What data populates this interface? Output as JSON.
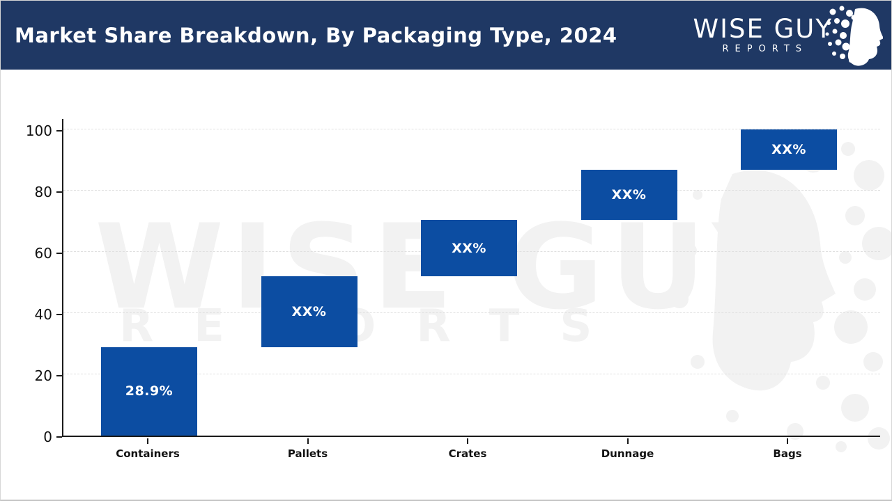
{
  "header": {
    "title": "Market Share Breakdown, By Packaging Type, 2024",
    "logo": {
      "line1": "WISE GUY",
      "line2": "REPORTS"
    }
  },
  "watermark": {
    "line1": "WISE GUY",
    "line2": "REPORTS"
  },
  "chart_data": {
    "type": "bar",
    "subtype": "waterfall-floating-bars",
    "title": "Market Share Breakdown, By Packaging Type, 2024",
    "categories": [
      "Containers",
      "Pallets",
      "Crates",
      "Dunnage",
      "Bags"
    ],
    "segments": [
      {
        "category": "Containers",
        "start": 0,
        "end": 28.9,
        "label": "28.9%"
      },
      {
        "category": "Pallets",
        "start": 28.9,
        "end": 52.0,
        "label": "XX%"
      },
      {
        "category": "Crates",
        "start": 52.0,
        "end": 70.4,
        "label": "XX%"
      },
      {
        "category": "Dunnage",
        "start": 70.4,
        "end": 86.9,
        "label": "XX%"
      },
      {
        "category": "Bags",
        "start": 86.9,
        "end": 100,
        "label": "XX%"
      }
    ],
    "ylabel": "",
    "xlabel": "",
    "ylim": [
      0,
      100
    ],
    "yticks": [
      0,
      20,
      40,
      60,
      80,
      100
    ],
    "grid": "horizontal-dashed",
    "legend": "none",
    "units": "percent"
  },
  "colors": {
    "header_bg": "#1f3864",
    "bar_fill": "#0c4da2",
    "bar_label": "#ffffff",
    "axis": "#1a1a1a",
    "gridline": "#e0e0e0",
    "watermark": "#f2f2f2",
    "page_border": "#d6d6d6"
  }
}
